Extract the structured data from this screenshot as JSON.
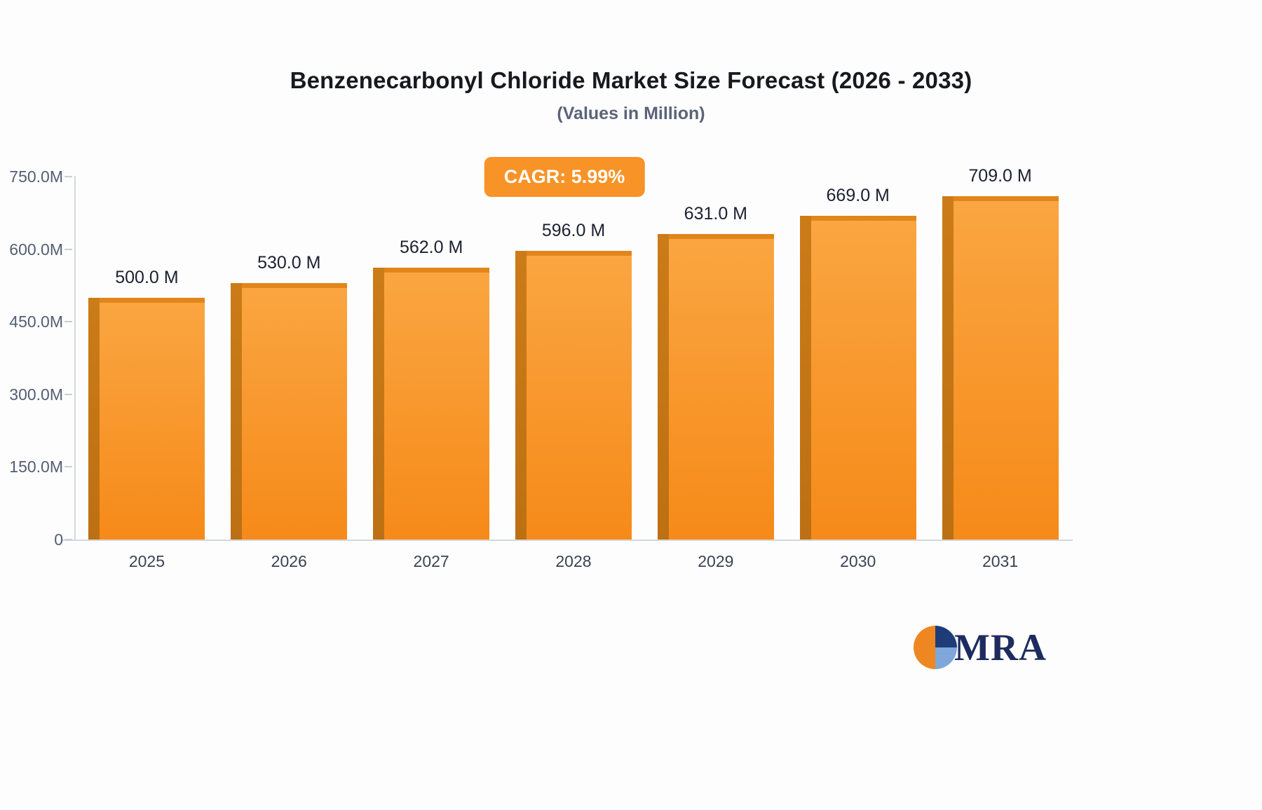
{
  "header": {
    "title": "Benzenecarbonyl Chloride Market Size Forecast (2026 - 2033)",
    "subtitle": "(Values in Million)"
  },
  "badge": {
    "label": "CAGR: 5.99%",
    "color": "#f79327"
  },
  "chart_data": {
    "type": "bar",
    "title": "Benzenecarbonyl Chloride Market Size Forecast (2026 - 2033)",
    "subtitle": "(Values in Million)",
    "categories": [
      "2025",
      "2026",
      "2027",
      "2028",
      "2029",
      "2030",
      "2031"
    ],
    "values": [
      500,
      530,
      562,
      596,
      631,
      669,
      709
    ],
    "value_labels": [
      "500.0 M",
      "530.0 M",
      "562.0 M",
      "596.0 M",
      "631.0 M",
      "669.0 M",
      "709.0 M"
    ],
    "yticks": [
      {
        "label": "750.0M",
        "value": 750
      },
      {
        "label": "600.0M",
        "value": 600
      },
      {
        "label": "450.0M",
        "value": 450
      },
      {
        "label": "300.0M",
        "value": 300
      },
      {
        "label": "150.0M",
        "value": 150
      },
      {
        "label": "0",
        "value": 0
      }
    ],
    "ylim": [
      0,
      750
    ],
    "xlabel": "",
    "ylabel": "",
    "grid": false,
    "legend": false,
    "bar_color_top": "#faa642",
    "bar_color_bottom": "#f68a19",
    "bar_side_color": "#c47614",
    "bar_cap_color": "#e2851b"
  },
  "logo": {
    "text": "MRA",
    "icon_colors": {
      "navy": "#1e3d78",
      "light_blue": "#7fa7d9",
      "orange": "#ee8722"
    }
  }
}
